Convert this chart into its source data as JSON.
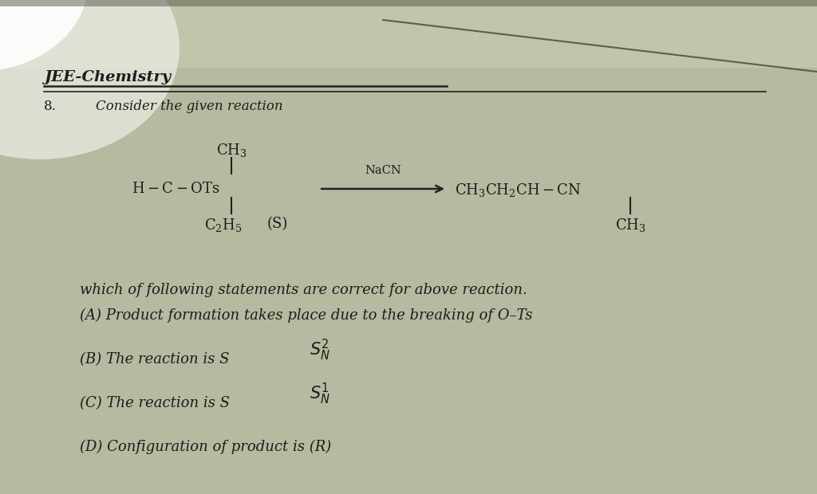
{
  "bg_color": "#b8bda0",
  "top_white_color": "#e8ece0",
  "text_color": "#1c1c1c",
  "line_color": "#222222",
  "header": "JEE-Chemistry",
  "q_num": "8.",
  "q_text": "Consider the given reaction",
  "fig_width": 10.24,
  "fig_height": 6.2,
  "dpi": 100,
  "header_fs": 14,
  "q_fs": 12,
  "chem_fs": 13,
  "body_fs": 13,
  "option_B_pre": "(B) The reaction is S",
  "option_C_pre": "(C) The reaction is S",
  "option_D": "(D) Configuration of product is (R)"
}
